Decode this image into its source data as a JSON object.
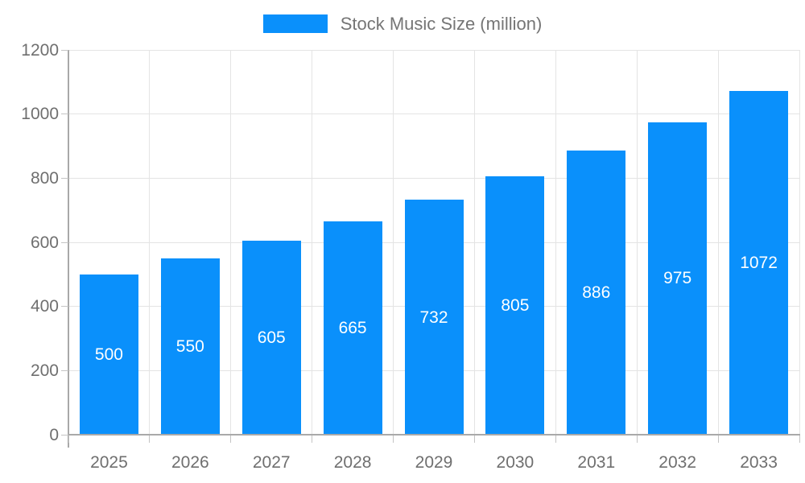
{
  "chart_data": {
    "type": "bar",
    "title": "Stock Music Size (million)",
    "legend": {
      "label": "Stock Music Size (million)",
      "position": "top"
    },
    "categories": [
      "2025",
      "2026",
      "2027",
      "2028",
      "2029",
      "2030",
      "2031",
      "2032",
      "2033"
    ],
    "series": [
      {
        "name": "Stock Music Size (million)",
        "values": [
          500,
          550,
          605,
          665,
          732,
          805,
          886,
          975,
          1072
        ]
      }
    ],
    "values": [
      500,
      550,
      605,
      665,
      732,
      805,
      886,
      975,
      1072
    ],
    "value_labels_shown": true,
    "xlabel": "",
    "ylabel": "",
    "ylim": [
      0,
      1200
    ],
    "yticks": [
      0,
      200,
      400,
      600,
      800,
      1000,
      1200
    ],
    "grid": true
  },
  "colors": {
    "bar": "#0A90FB",
    "value_label": "#FFFFFF",
    "legend_text": "#757575",
    "axis_text": "#6F6F6F",
    "gridline": "#E4E4E4",
    "axis_line": "#A9A9A9",
    "tick": "#C4C4C4",
    "background": "#FFFFFF"
  }
}
